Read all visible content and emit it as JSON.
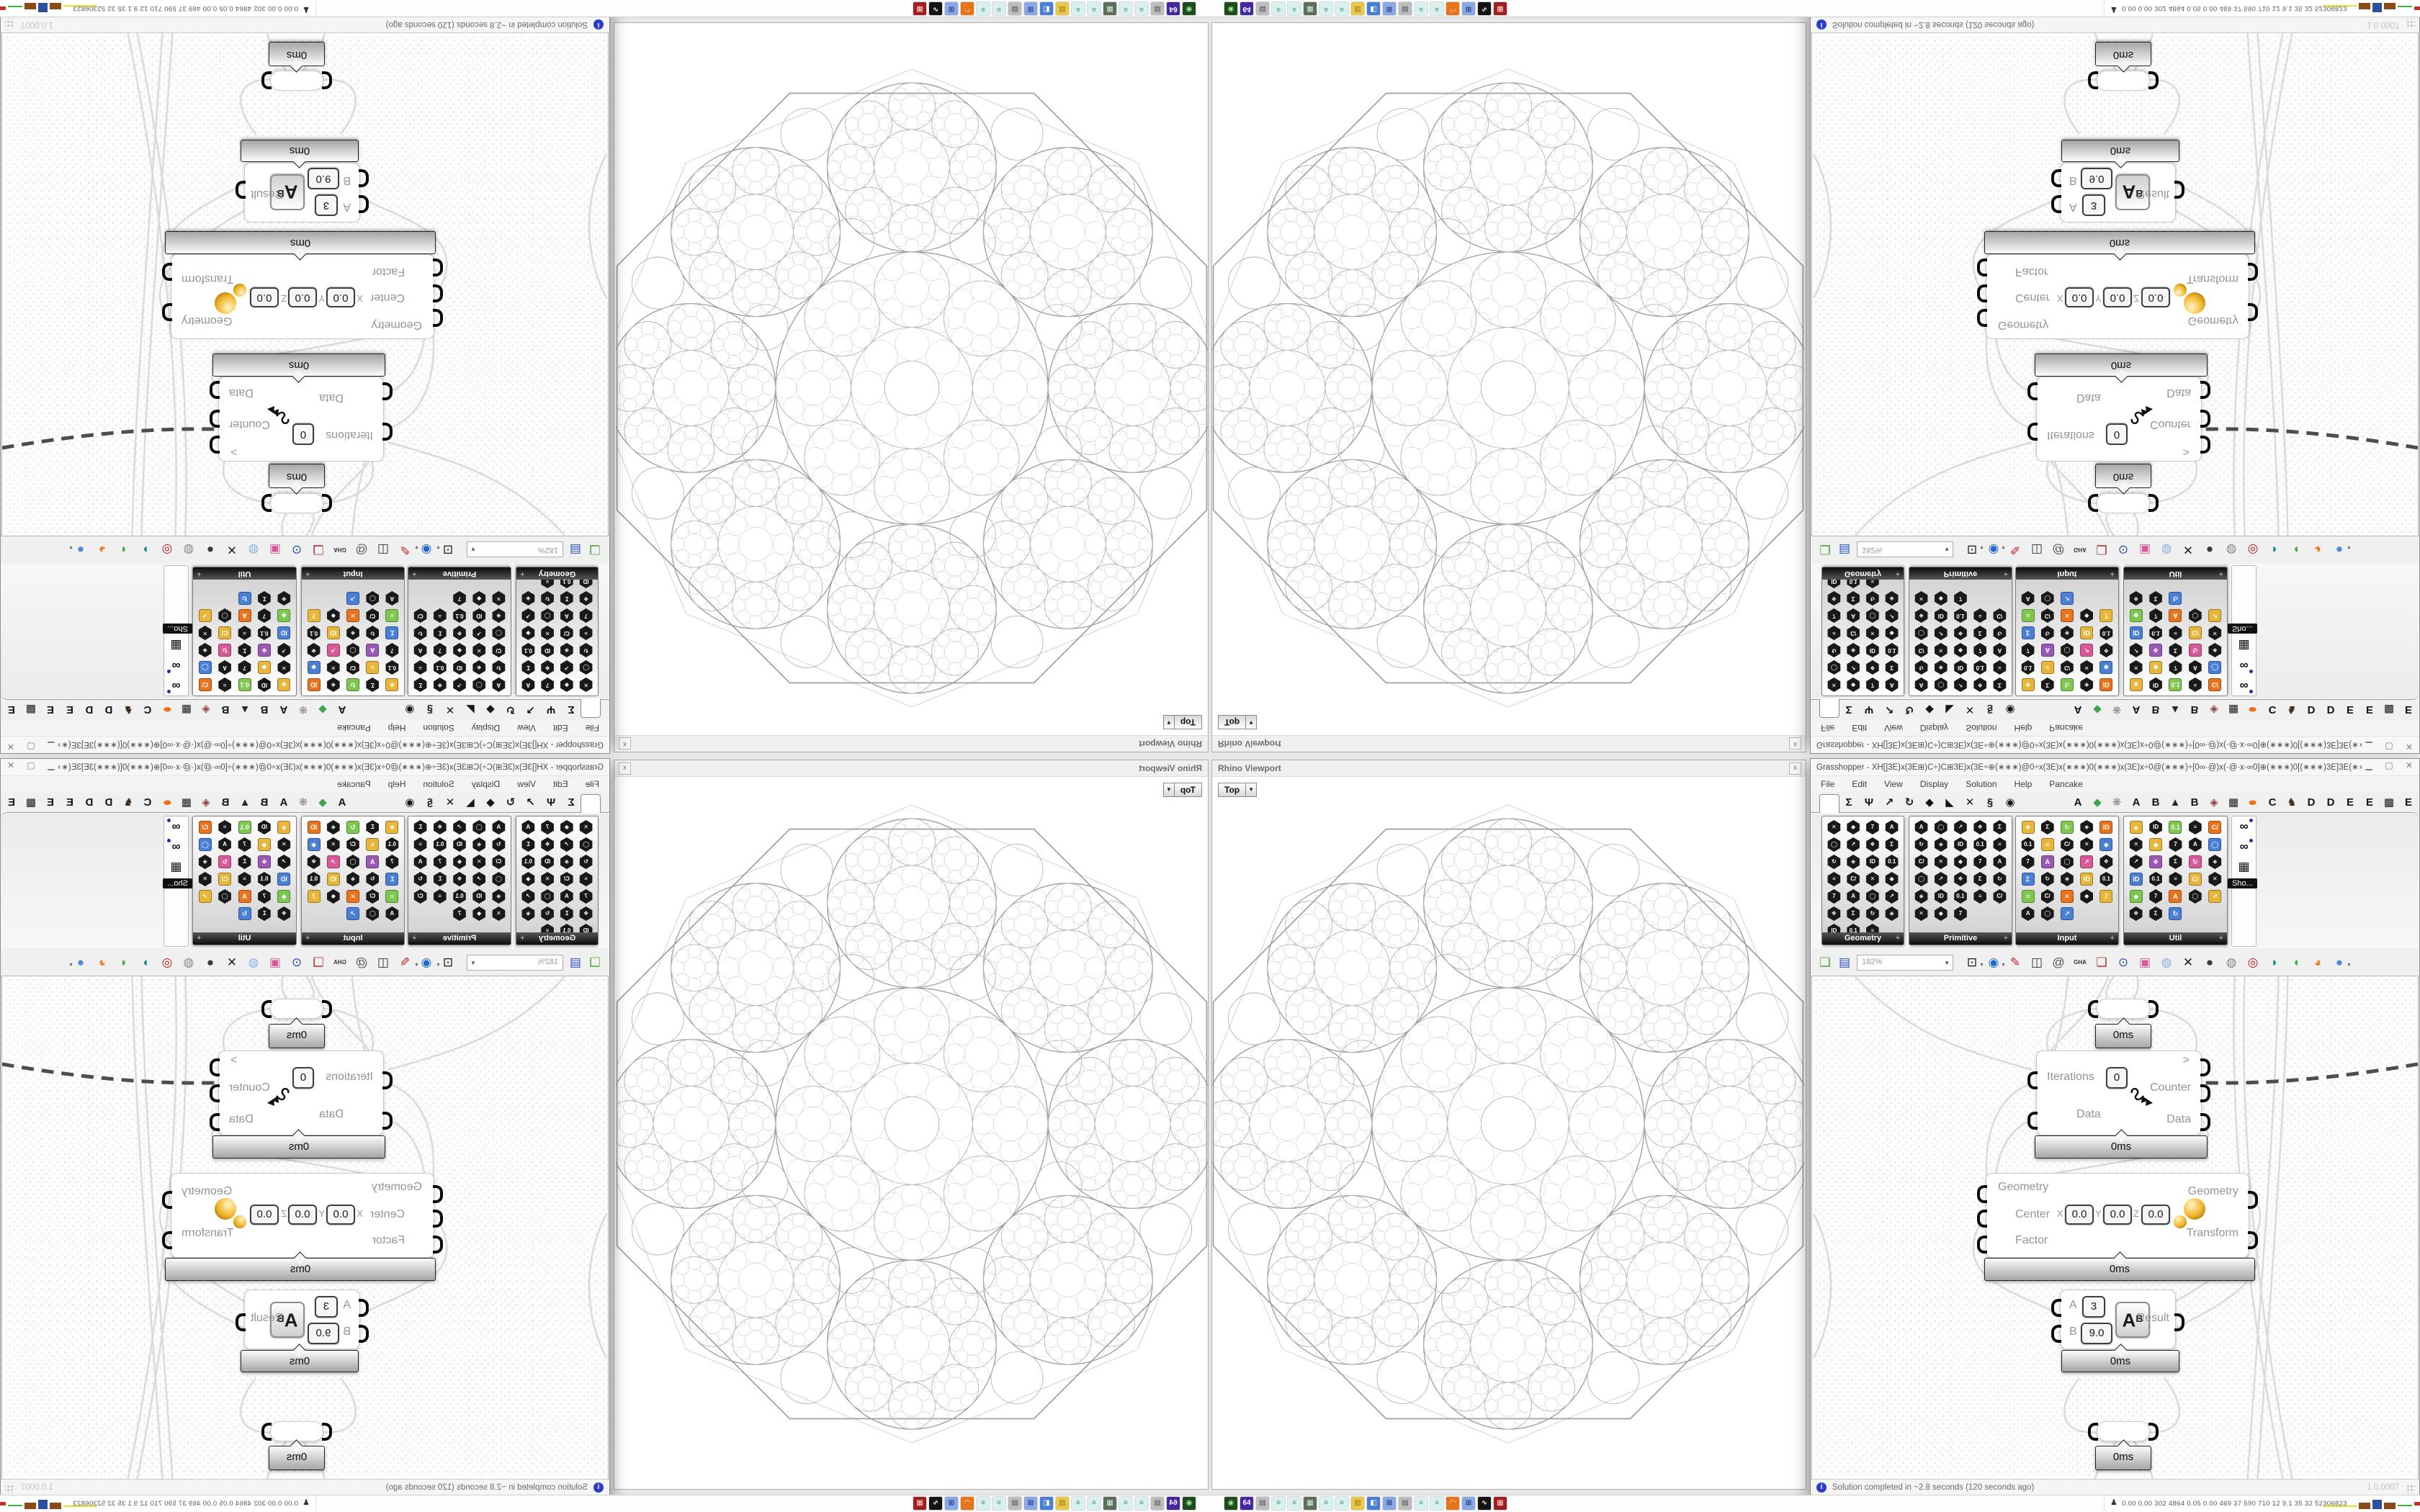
{
  "badge_label": "0ms",
  "viewport": {
    "title": "Rhino Viewport",
    "close_glyph": "x",
    "view_label": "Top",
    "fractal": {
      "type": "circle-packing",
      "shape": "octagon",
      "symmetry": 8,
      "depth": 3
    }
  },
  "gh": {
    "title": "Grasshopper - XH[]3E)x(3E⊞)C÷)C⊞3E)x(3E÷⊕(∗∗∗)@0÷x(3E)x(∗∗∗)0(∗∗∗)x(3E)x÷0@(∗∗∗)÷[0∞·@)x(·@·x·∞0]⊕(∗∗∗)0[(∗∗∗)3E]3E(∗∗∗)[0(∗∗∗)÷[0∞·@)x(·∞0]÷⊕@0÷x(3E)x(∗∗∗)0...",
    "window_buttons": [
      {
        "name": "minimize-button",
        "glyph": "▁"
      },
      {
        "name": "maximize-button",
        "glyph": "▢"
      },
      {
        "name": "close-button",
        "glyph": "✕"
      }
    ],
    "menu": [
      "File",
      "Edit",
      "View",
      "Display",
      "Solution",
      "Help",
      "Pancake"
    ],
    "icon_tabs": [
      {
        "name": "tab-params",
        "glyph": "hex",
        "selected": true
      },
      {
        "name": "tab-maths",
        "glyph": "Σ"
      },
      {
        "name": "tab-sets",
        "glyph": "Ψ"
      },
      {
        "name": "tab-vector",
        "glyph": "↗"
      },
      {
        "name": "tab-curve",
        "glyph": "↻"
      },
      {
        "name": "tab-surface",
        "glyph": "◆"
      },
      {
        "name": "tab-mesh",
        "glyph": "◣"
      },
      {
        "name": "tab-intersect",
        "glyph": "✕"
      },
      {
        "name": "tab-transform",
        "glyph": "§"
      },
      {
        "name": "tab-display",
        "glyph": "◉"
      }
    ],
    "letter_tabs": [
      {
        "glyph": "A",
        "color": "#141414"
      },
      {
        "glyph": "◆",
        "color": "#3da44b"
      },
      {
        "glyph": "❋",
        "color": "#8a8a8a"
      },
      {
        "glyph": "A",
        "color": "#141414"
      },
      {
        "glyph": "B",
        "color": "#141414"
      },
      {
        "glyph": "▲",
        "color": "#33261a"
      },
      {
        "glyph": "B",
        "color": "#141414"
      },
      {
        "glyph": "◈",
        "color": "#8f4040"
      },
      {
        "glyph": "▦",
        "color": "#141414"
      },
      {
        "glyph": "●",
        "color": "#e8731a",
        "wide": true
      },
      {
        "glyph": "C",
        "color": "#141414"
      },
      {
        "glyph": "♞",
        "color": "#3c2a16"
      },
      {
        "glyph": "D",
        "color": "#141414"
      },
      {
        "glyph": "D",
        "color": "#141414"
      },
      {
        "glyph": "E",
        "color": "#141414"
      },
      {
        "glyph": "E",
        "color": "#141414"
      },
      {
        "glyph": "▩",
        "color": "#141414"
      },
      {
        "glyph": "E",
        "color": "#141414"
      }
    ],
    "panels": [
      {
        "label": "Geometry",
        "cols": 4,
        "count": 27,
        "mixed": false
      },
      {
        "label": "Primitive",
        "cols": 5,
        "count": 28,
        "mixed": false
      },
      {
        "label": "Input",
        "cols": 5,
        "count": 28,
        "mixed": true
      },
      {
        "label": "Util",
        "cols": 5,
        "count": 28,
        "mixed": true
      }
    ],
    "panel_symbols": [
      "✕",
      "◆",
      "7",
      "A",
      "◯",
      "↗",
      "❖",
      "Σ",
      "↻",
      "◈",
      "ID",
      "0.1",
      "≡",
      "C/"
    ],
    "mixed_colors": [
      "#e8b63a",
      "#d85898",
      "#7ec850",
      "#4a7fd6",
      "#e8741e",
      "#9b59b6"
    ],
    "mini_panel": {
      "icons": [
        {
          "name": "glasses-icon",
          "glyph": "∞",
          "dot": true
        },
        {
          "name": "glasses-wire-icon",
          "glyph": "∞",
          "dot": true
        },
        {
          "name": "projector-screen-icon",
          "glyph": "▦",
          "dot": false
        }
      ],
      "tooltip": "Sho..."
    },
    "canvas_toolbar": {
      "zoom_value": "182%",
      "left_icons": [
        {
          "name": "open-file-button",
          "glyph": "❏",
          "color": "#4aa32f"
        },
        {
          "name": "save-file-button",
          "glyph": "▤",
          "color": "#2b50c8"
        }
      ],
      "right_icons": [
        {
          "name": "zoom-extents-button",
          "glyph": "⊡",
          "color": "#1a1a1a",
          "caret": true
        },
        {
          "name": "preview-eye-button",
          "glyph": "◉",
          "color": "#2368c4",
          "caret": true
        },
        {
          "name": "wire-pen-button",
          "glyph": "✎",
          "color": "#c42222"
        },
        {
          "name": "exit-door-button",
          "glyph": "◫",
          "color": "#333333"
        },
        {
          "name": "internalise-at-button",
          "glyph": "@",
          "color": "#555555"
        },
        {
          "name": "gha-export-button",
          "glyph": "GHA",
          "color": "#333333",
          "text": true
        },
        {
          "name": "window-flag-button",
          "glyph": "❏",
          "color": "#b03030"
        },
        {
          "name": "finder-magnifier-button",
          "glyph": "⊙",
          "color": "#2255aa"
        },
        {
          "name": "gift-help-button",
          "glyph": "▣",
          "color": "#d8589a"
        },
        {
          "name": "balloon-button",
          "glyph": "◍",
          "color": "#8ab0e8"
        },
        {
          "name": "cluster-ribbon-button",
          "glyph": "✕",
          "color": "#222222"
        },
        {
          "name": "sphere-dark-button",
          "glyph": "●",
          "color": "#3a3a3a"
        },
        {
          "name": "sphere-wire-button",
          "glyph": "◍",
          "color": "#888888"
        },
        {
          "name": "torus-red-button",
          "glyph": "◎",
          "color": "#b02020"
        },
        {
          "name": "cone-teal-button",
          "glyph": "◗",
          "color": "#1b8a8a"
        },
        {
          "name": "cylinder-green-button",
          "glyph": "◖",
          "color": "#3fae49"
        },
        {
          "name": "sphere-orange-button",
          "glyph": "◕",
          "color": "#e8821e"
        },
        {
          "name": "sphere-blue-button",
          "glyph": "●",
          "color": "#5588dd",
          "caret": true
        }
      ]
    },
    "status": {
      "message": "Solution completed in ~2.8 seconds (120 seconds ago)",
      "version": "1.0.0007"
    }
  },
  "nodes": {
    "loop": {
      "iterations_label": "Iterations",
      "iterations_value": "0",
      "gt_out": ">",
      "counter_out": "Counter",
      "data_in": "Data",
      "data_out": "Data"
    },
    "scale": {
      "geometry_in": "Geometry",
      "center_label": "Center",
      "x_label": "X",
      "y_label": "Y",
      "z_label": "Z",
      "center_x": "0.0",
      "center_y": "0.0",
      "center_z": "0.0",
      "factor_in": "Factor",
      "geometry_out": "Geometry",
      "transform_out": "Transform"
    },
    "power": {
      "a_label": "A",
      "a_value": "3",
      "b_label": "B",
      "b_value": "9.0",
      "icon_a": "A",
      "icon_b": "B",
      "result_out": "Result"
    }
  },
  "taskbar": {
    "icons": [
      {
        "name": "device-icon",
        "glyph": "◉",
        "bg": "#1d4d1d",
        "fg": "#9fe89f"
      },
      {
        "name": "floppy64-icon",
        "glyph": "64",
        "bg": "#4527a0",
        "fg": "#ffffff"
      },
      {
        "name": "printer-icon",
        "glyph": "▤",
        "bg": "#bdbdbd",
        "fg": "#4d4d4d"
      },
      {
        "name": "notepad-icon",
        "glyph": "≡",
        "bg": "#d8f0ee",
        "fg": "#4a8a86"
      },
      {
        "name": "notepad-icon",
        "glyph": "≡",
        "bg": "#d8f0ee",
        "fg": "#4a8a86"
      },
      {
        "name": "monitor-plant-icon",
        "glyph": "▦",
        "bg": "#5a6e5a",
        "fg": "#d8f0d8"
      },
      {
        "name": "notepad-icon",
        "glyph": "≡",
        "bg": "#d8f0ee",
        "fg": "#4a8a86"
      },
      {
        "name": "notepad-icon",
        "glyph": "≡",
        "bg": "#d8f0ee",
        "fg": "#4a8a86"
      },
      {
        "name": "folder-icon",
        "glyph": "▨",
        "bg": "#e8c84a",
        "fg": "#a07818"
      },
      {
        "name": "media-device-icon",
        "glyph": "◧",
        "bg": "#4a7fd6",
        "fg": "#ffffff"
      },
      {
        "name": "calculator-icon",
        "glyph": "⊞",
        "bg": "#8aa8e8",
        "fg": "#223a78"
      },
      {
        "name": "printer-icon",
        "glyph": "▤",
        "bg": "#bdbdbd",
        "fg": "#4d4d4d"
      },
      {
        "name": "notepad-icon",
        "glyph": "≡",
        "bg": "#d8f0ee",
        "fg": "#4a8a86"
      },
      {
        "name": "notepad-icon",
        "glyph": "≡",
        "bg": "#d8f0ee",
        "fg": "#4a8a86"
      },
      {
        "name": "firefox-icon",
        "glyph": "◠",
        "bg": "#e8741a",
        "fg": "#ffffff"
      },
      {
        "name": "calculator-icon",
        "glyph": "⊞",
        "bg": "#8aa8e8",
        "fg": "#223a78"
      },
      {
        "name": "swan-icon",
        "glyph": "∿",
        "bg": "#141414",
        "fg": "#ffffff"
      },
      {
        "name": "circuit-icon",
        "glyph": "▦",
        "bg": "#a02020",
        "fg": "#ffd0d0"
      }
    ],
    "readout_person": "♟",
    "readout_values": "0.00 0.00 302 4864 0.05 0.00 469 37  590  710  12  9.1  35  32 52306823",
    "chart": [
      {
        "w": 46,
        "h": 2,
        "c": "#e2e22a",
        "y": 3
      },
      {
        "w": 16,
        "h": 9,
        "c": "#8a4a17",
        "y": 0
      },
      {
        "w": 13,
        "h": 13,
        "c": "#2b50a0",
        "y": 0
      },
      {
        "w": 16,
        "h": 9,
        "c": "#8a4a17",
        "y": 0
      },
      {
        "w": 20,
        "h": 2,
        "c": "#3fae49",
        "y": 4
      },
      {
        "w": 10,
        "h": 5,
        "c": "#c03030",
        "y": 5
      }
    ]
  }
}
